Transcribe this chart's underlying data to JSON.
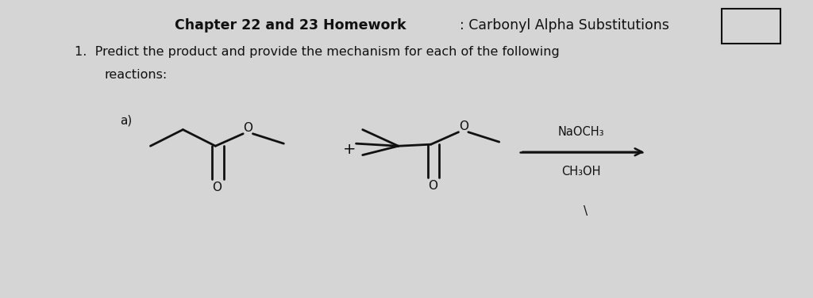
{
  "background_color": "#d5d5d5",
  "title_bold": "Chapter 22 and 23 Homework",
  "title_normal": ": Carbonyl Alpha Substitutions",
  "q_line1": "1.  Predict the product and provide the mechanism for each of the following",
  "q_line2": "    reactions:",
  "label_a": "a)",
  "reagent_above": "NaOCH₃",
  "reagent_below": "CH₃OH",
  "plus_sign": "+",
  "text_color": "#111111",
  "line_color": "#111111",
  "line_width": 2.0
}
